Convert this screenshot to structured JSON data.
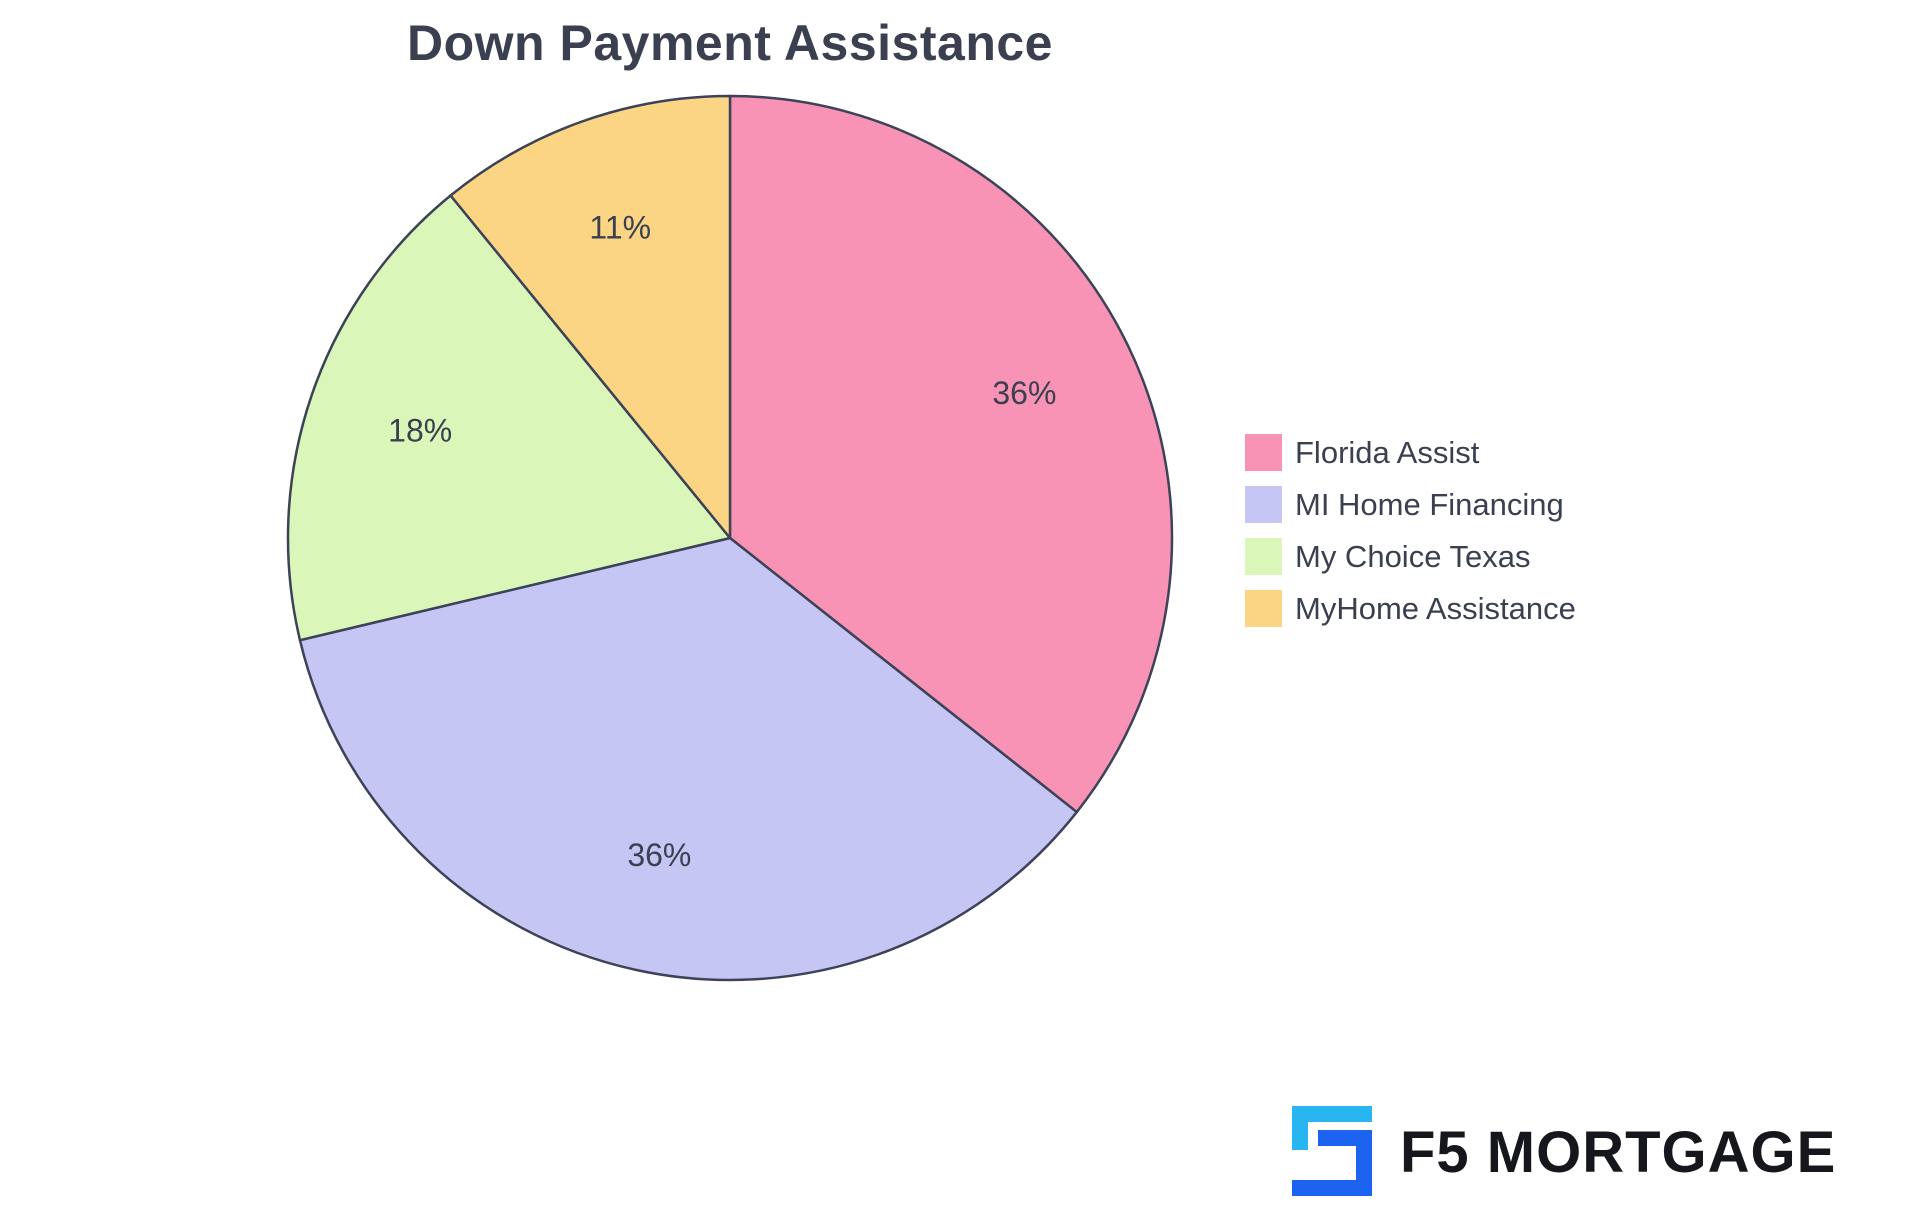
{
  "title": "Down Payment Assistance",
  "chart_data": {
    "type": "pie",
    "labels": [
      "Florida Assist",
      "MI Home Financing",
      "My Choice Texas",
      "MyHome Assistance"
    ],
    "values": [
      36,
      36,
      18,
      11
    ],
    "pct_labels": [
      "36%",
      "36%",
      "18%",
      "11%"
    ],
    "colors": [
      "#F893B5",
      "#C6C6F4",
      "#DAF7B9",
      "#FBD584"
    ],
    "stroke_color": "#3C4257",
    "start_angle_deg": -90,
    "direction": "clockwise",
    "legend_position": "right",
    "title": "Down Payment Assistance"
  },
  "legend": {
    "items": [
      {
        "label": "Florida Assist",
        "color": "#F893B5"
      },
      {
        "label": "MI Home Financing",
        "color": "#C6C6F4"
      },
      {
        "label": "My Choice Texas",
        "color": "#DAF7B9"
      },
      {
        "label": "MyHome Assistance",
        "color": "#FBD584"
      }
    ]
  },
  "branding": {
    "logo_text": "F5 MORTGAGE",
    "logo_colors": {
      "cyan": "#29B6F0",
      "blue": "#1D63F2"
    }
  }
}
